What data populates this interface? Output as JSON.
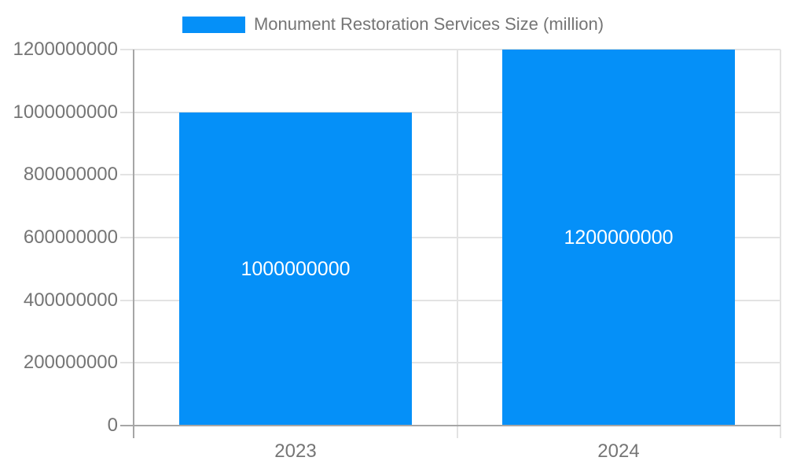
{
  "colors": {
    "bar": "#0590f8",
    "grid": "#e3e3e3",
    "axis_line": "#a6a6a6",
    "text_gray": "#757575",
    "bar_label_text": "#ffffff",
    "background": "#ffffff"
  },
  "legend": {
    "label": "Monument Restoration Services Size (million)"
  },
  "chart_data": {
    "type": "bar",
    "title": "Monument Restoration Services Size (million)",
    "categories": [
      "2023",
      "2024"
    ],
    "series": [
      {
        "name": "Monument Restoration Services Size (million)",
        "values": [
          1000000000,
          1200000000
        ]
      }
    ],
    "values": [
      1000000000,
      1200000000
    ],
    "data_labels": [
      "1000000000",
      "1200000000"
    ],
    "xlabel": "",
    "ylabel": "",
    "ylim": [
      0,
      1200000000
    ],
    "y_ticks": [
      0,
      200000000,
      400000000,
      600000000,
      800000000,
      1000000000,
      1200000000
    ],
    "y_tick_labels": [
      "0",
      "200000000",
      "400000000",
      "600000000",
      "800000000",
      "1000000000",
      "1200000000"
    ],
    "grid": true,
    "legend_position": "top-center",
    "bar_color": "#0590f8"
  }
}
